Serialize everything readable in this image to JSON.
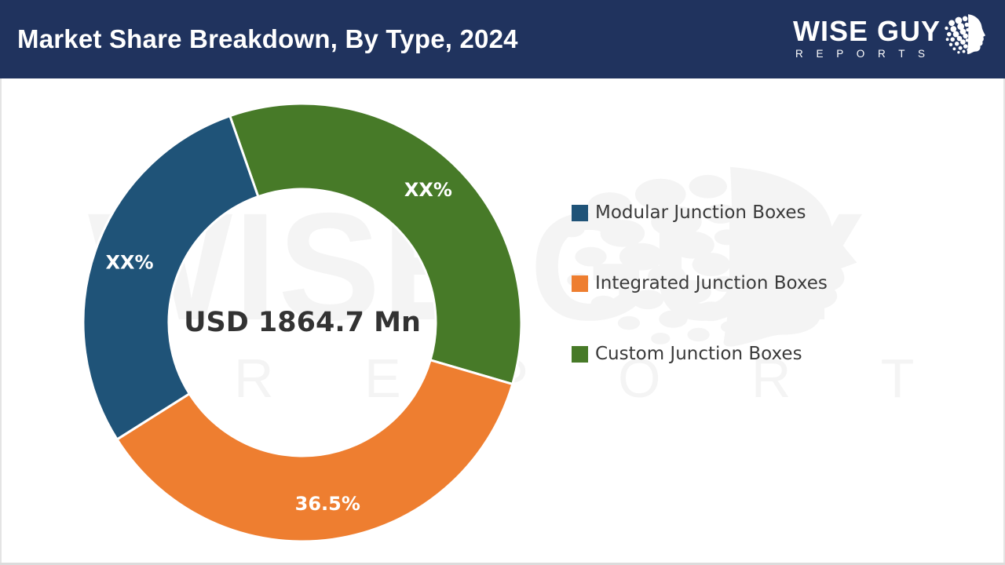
{
  "header": {
    "title": "Market Share Breakdown, By Type, 2024",
    "logo": {
      "wordmark": "WISE GUY",
      "subtitle": "R E P O R T S"
    }
  },
  "watermark": {
    "wordmark": "WISE GUY",
    "subtitle": "R E P O R T S"
  },
  "chart_data": {
    "type": "pie",
    "variant": "donut",
    "title": "Market Share Breakdown, By Type, 2024",
    "center_label": "USD 1864.7 Mn",
    "start_angle_deg": -19.3,
    "direction": "clockwise",
    "legend_position": "right",
    "segments": [
      {
        "name": "Custom Junction Boxes",
        "value_pct": 34.9,
        "display_label": "XX%",
        "color": "#477A28"
      },
      {
        "name": "Integrated Junction Boxes",
        "value_pct": 36.5,
        "display_label": "36.5%",
        "color": "#EE7E30"
      },
      {
        "name": "Modular Junction Boxes",
        "value_pct": 28.6,
        "display_label": "XX%",
        "color": "#1F5378"
      }
    ]
  },
  "legend": {
    "items": [
      {
        "label": "Modular Junction Boxes",
        "color": "#1F5378"
      },
      {
        "label": "Integrated Junction Boxes",
        "color": "#EE7E30"
      },
      {
        "label": "Custom Junction Boxes",
        "color": "#477A28"
      }
    ]
  },
  "colors": {
    "header_bg": "#20335E",
    "title_text": "#FFFFFF",
    "center_text": "#333333",
    "legend_text": "#3A3A3A",
    "segment_label_text": "#FFFFFF",
    "watermark": "#F4F4F4"
  }
}
